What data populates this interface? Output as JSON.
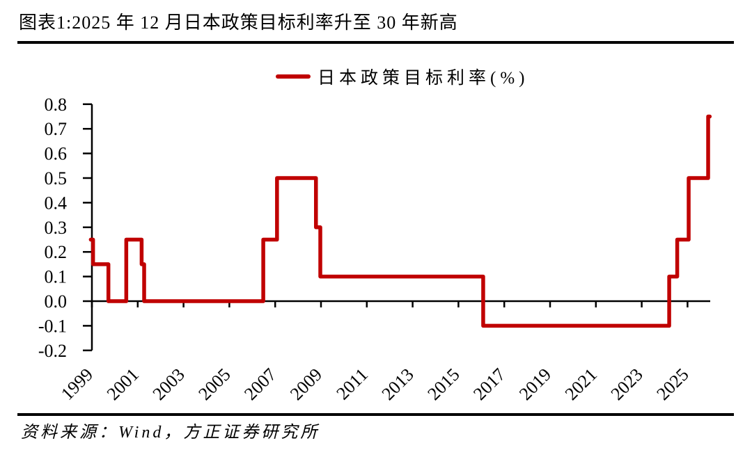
{
  "figure": {
    "title": "图表1:2025 年 12 月日本政策目标利率升至 30 年新高",
    "source": "资料来源：Wind，方正证券研究所"
  },
  "legend": {
    "label": "日本政策目标利率(%)"
  },
  "chart_data": {
    "type": "line",
    "subtype": "step",
    "title": "2025年12月日本政策目标利率升至30年新高",
    "xlabel": "",
    "ylabel": "",
    "legend_entries": [
      "日本政策目标利率(%)"
    ],
    "legend_position": "top-center",
    "grid": false,
    "xlim": [
      1998.9,
      2026.0
    ],
    "ylim": [
      -0.2,
      0.8
    ],
    "y_ticks": [
      0.8,
      0.7,
      0.6,
      0.5,
      0.4,
      0.3,
      0.2,
      0.1,
      0.0,
      -0.1,
      -0.2
    ],
    "x_ticks": [
      1999,
      2001,
      2003,
      2005,
      2007,
      2009,
      2011,
      2013,
      2015,
      2017,
      2019,
      2021,
      2023,
      2025
    ],
    "line_color": "#C00000",
    "axis_color": "#000000",
    "series": [
      {
        "name": "日本政策目标利率(%)",
        "step_points": [
          [
            1998.95,
            0.25
          ],
          [
            1999.05,
            0.15
          ],
          [
            1999.72,
            0.0
          ],
          [
            2000.5,
            0.25
          ],
          [
            2001.17,
            0.15
          ],
          [
            2001.28,
            0.0
          ],
          [
            2006.48,
            0.25
          ],
          [
            2007.08,
            0.5
          ],
          [
            2008.78,
            0.3
          ],
          [
            2008.97,
            0.1
          ],
          [
            2016.08,
            -0.1
          ],
          [
            2024.2,
            0.1
          ],
          [
            2024.55,
            0.25
          ],
          [
            2025.05,
            0.5
          ],
          [
            2025.9,
            0.75
          ]
        ],
        "end_x": 2025.97
      }
    ]
  }
}
